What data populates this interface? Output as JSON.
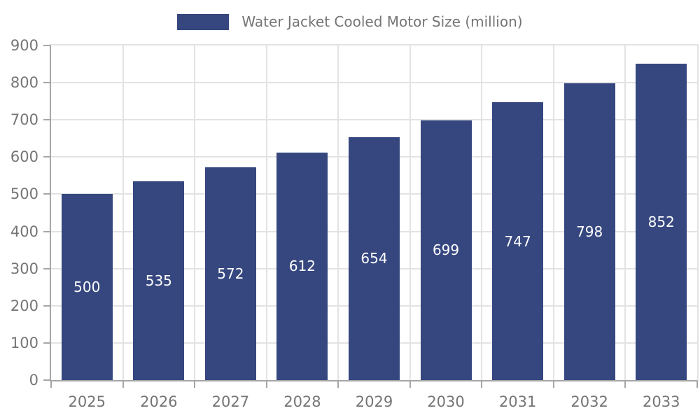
{
  "colors": {
    "bar": "#36477f",
    "grid": "#e3e3e3",
    "axis": "#a6a6a6",
    "tick_text": "#757575",
    "value_label": "#ffffff"
  },
  "chart_data": {
    "type": "bar",
    "title": "",
    "legend": "Water Jacket Cooled Motor Size (million)",
    "legend_position": "top-center",
    "categories": [
      "2025",
      "2026",
      "2027",
      "2028",
      "2029",
      "2030",
      "2031",
      "2032",
      "2033"
    ],
    "values": [
      500,
      535,
      572,
      612,
      654,
      699,
      747,
      798,
      852
    ],
    "xlabel": "",
    "ylabel": "",
    "ylim": [
      0,
      900
    ],
    "ytick_step": 100,
    "grid": true,
    "value_labels": "inside-middle",
    "bar_width_fraction": 0.712
  }
}
